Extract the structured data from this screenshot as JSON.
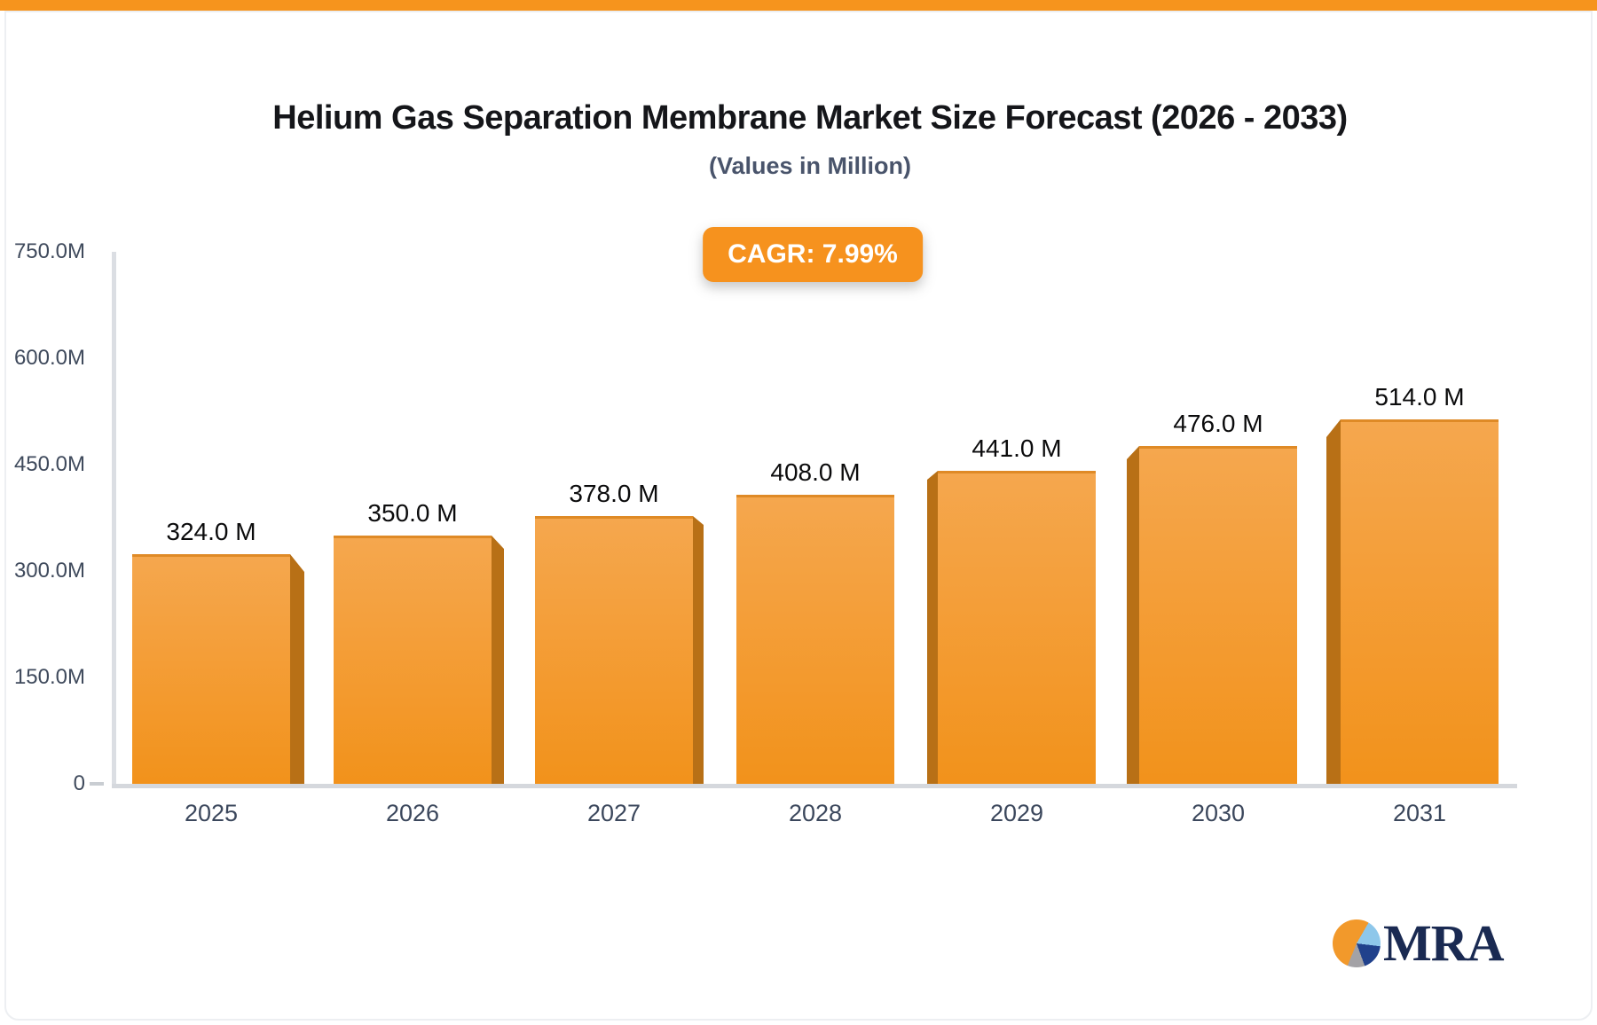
{
  "page": {
    "top_strip_color": "#f6941d"
  },
  "header": {
    "title": "Helium Gas Separation Membrane Market Size Forecast (2026 - 2033)",
    "subtitle": "(Values in Million)"
  },
  "badge": {
    "label": "CAGR: 7.99%",
    "bg": "#f6921e",
    "text_color": "#ffffff"
  },
  "chart_data": {
    "type": "bar",
    "title": "Helium Gas Separation Membrane Market Size Forecast (2026 - 2033)",
    "subtitle": "(Values in Million)",
    "cagr": "7.99%",
    "categories": [
      "2025",
      "2026",
      "2027",
      "2028",
      "2029",
      "2030",
      "2031"
    ],
    "values": [
      324,
      350,
      378,
      408,
      441,
      476,
      514
    ],
    "bar_labels": [
      "324.0 M",
      "350.0 M",
      "378.0 M",
      "408.0 M",
      "441.0 M",
      "476.0 M",
      "514.0 M"
    ],
    "y_ticks": [
      {
        "label": "750.0M",
        "value": 750
      },
      {
        "label": "600.0M",
        "value": 600
      },
      {
        "label": "450.0M",
        "value": 450
      },
      {
        "label": "300.0M",
        "value": 300
      },
      {
        "label": "150.0M",
        "value": 150
      },
      {
        "label": "0",
        "value": 0
      }
    ],
    "ylim": [
      0,
      750
    ],
    "grid": false,
    "legend": false,
    "colors": {
      "bar_top": "#f5a74e",
      "bar_bottom": "#f2921b",
      "bar_edge": "#df8a26",
      "bar_side": "#b87016",
      "axis": "#d5d8dd"
    }
  },
  "logo": {
    "text": "MRA",
    "pie_colors": [
      "#f2992b",
      "#8ec7ea",
      "#20418c",
      "#a3a2a6"
    ],
    "text_color": "#1a2a52"
  }
}
